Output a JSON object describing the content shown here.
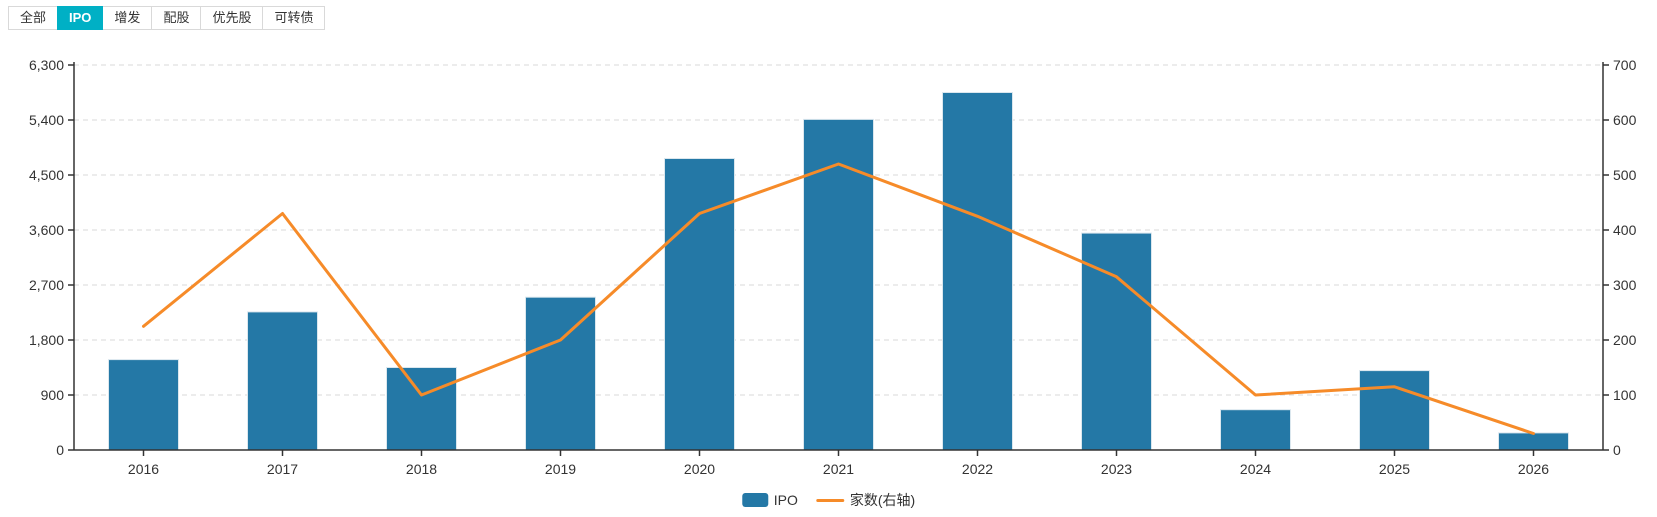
{
  "tabs": {
    "items": [
      {
        "label": "全部",
        "active": false
      },
      {
        "label": "IPO",
        "active": true
      },
      {
        "label": "增发",
        "active": false
      },
      {
        "label": "配股",
        "active": false
      },
      {
        "label": "优先股",
        "active": false
      },
      {
        "label": "可转债",
        "active": false
      }
    ]
  },
  "colors": {
    "bar": "#2478a6",
    "bar_edge": "#dbe7ee",
    "line": "#f68b29",
    "active_tab": "#00b0c5",
    "axis": "#333333",
    "grid": "#d9d9d9",
    "tick_text": "#333333"
  },
  "chart_data": {
    "type": "bar",
    "subtype": "bar+line dual axis",
    "categories": [
      "2016",
      "2017",
      "2018",
      "2019",
      "2020",
      "2021",
      "2022",
      "2023",
      "2024",
      "2025",
      "2026"
    ],
    "series": [
      {
        "name": "IPO",
        "type": "bar",
        "axis": "left",
        "color": "#2478a6",
        "values": [
          1480,
          2260,
          1350,
          2500,
          4770,
          5410,
          5850,
          3550,
          660,
          1300,
          280
        ]
      },
      {
        "name": "家数(右轴)",
        "type": "line",
        "axis": "right",
        "color": "#f68b29",
        "values": [
          225,
          430,
          100,
          200,
          430,
          520,
          425,
          315,
          100,
          115,
          30
        ]
      }
    ],
    "left_axis": {
      "min": 0,
      "max": 6300,
      "ticks": [
        0,
        900,
        1800,
        2700,
        3600,
        4500,
        5400,
        6300
      ],
      "format": "thousands-comma"
    },
    "right_axis": {
      "min": 0,
      "max": 700,
      "ticks": [
        0,
        100,
        200,
        300,
        400,
        500,
        600,
        700
      ]
    },
    "grid": "horizontal dashed",
    "legend_position": "bottom-center",
    "title": "",
    "xlabel": "",
    "ylabel": ""
  }
}
